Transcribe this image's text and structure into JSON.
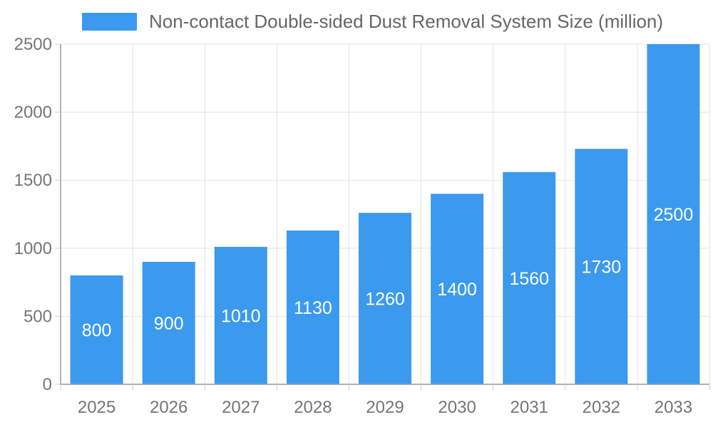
{
  "legend": {
    "label": "Non-contact Double-sided Dust Removal System Size (million)"
  },
  "chart_data": {
    "type": "bar",
    "title": "Non-contact Double-sided Dust Removal System Size (million)",
    "categories": [
      "2025",
      "2026",
      "2027",
      "2028",
      "2029",
      "2030",
      "2031",
      "2032",
      "2033"
    ],
    "series": [
      {
        "name": "Non-contact Double-sided Dust Removal System Size (million)",
        "values": [
          800,
          900,
          1010,
          1130,
          1260,
          1400,
          1560,
          1730,
          2500
        ]
      }
    ],
    "bar_labels": [
      "800",
      "900",
      "1010",
      "1130",
      "1260",
      "1400",
      "1560",
      "1730",
      "2500"
    ],
    "xlabel": "",
    "ylabel": "",
    "ylim": [
      0,
      2500
    ],
    "y_ticks": [
      0,
      500,
      1000,
      1500,
      2000,
      2500
    ],
    "grid": true,
    "legend_position": "top-left",
    "colors": {
      "bar": "#3B9AEE",
      "bar_label": "#FFFFFF",
      "grid_line": "#E3E3E3",
      "axis_line": "#999999",
      "tick": "#CCCCCC",
      "tick_label": "#757575",
      "legend_text": "#666666",
      "background": "#FFFFFF"
    }
  }
}
